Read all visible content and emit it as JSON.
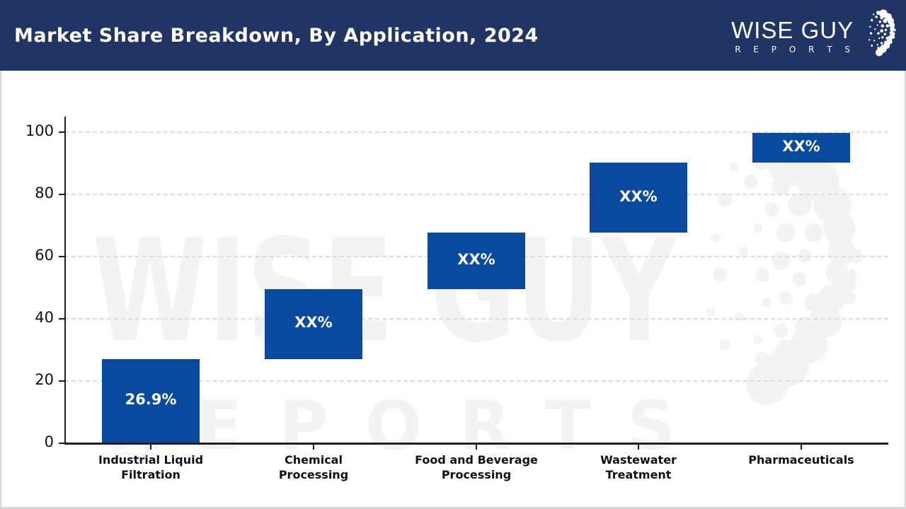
{
  "header": {
    "title": "Market Share Breakdown, By Application, 2024",
    "logo_line1": "WISE GUY",
    "logo_line2": "R E P O R T S"
  },
  "watermark": {
    "line1": "WISE GUY",
    "line2": "REPORTS"
  },
  "chart_data": {
    "type": "bar",
    "subtype": "waterfall",
    "title": "Market Share Breakdown, By Application, 2024",
    "categories": [
      "Industrial Liquid Filtration",
      "Chemical Processing",
      "Food and Beverage Processing",
      "Wastewater Treatment",
      "Pharmaceuticals"
    ],
    "category_lines": [
      [
        "Industrial Liquid",
        "Filtration"
      ],
      [
        "Chemical",
        "Processing"
      ],
      [
        "Food and Beverage",
        "Processing"
      ],
      [
        "Wastewater",
        "Treatment"
      ],
      [
        "Pharmaceuticals"
      ]
    ],
    "segments": [
      {
        "category": "Industrial Liquid Filtration",
        "start": 0,
        "end": 26.9,
        "label": "26.9%"
      },
      {
        "category": "Chemical Processing",
        "start": 26.9,
        "end": 49.4,
        "label": "XX%"
      },
      {
        "category": "Food and Beverage Processing",
        "start": 49.4,
        "end": 67.4,
        "label": "XX%"
      },
      {
        "category": "Wastewater Treatment",
        "start": 67.4,
        "end": 89.9,
        "label": "XX%"
      },
      {
        "category": "Pharmaceuticals",
        "start": 89.9,
        "end": 99.6,
        "label": "XX%"
      }
    ],
    "yticks": [
      0,
      20,
      40,
      60,
      80,
      100
    ],
    "ylim": [
      0,
      105
    ],
    "xlabel": "",
    "ylabel": "",
    "grid": "dashed-horizontal",
    "legend": "none",
    "colors": {
      "bar": "#0a4a9e",
      "bar_label": "#ffffff",
      "axis": "#1f1f1f",
      "grid": "#dcdcdc",
      "tick_label": "#111111"
    }
  },
  "theme": {
    "header_bg": "#203564",
    "header_text": "#ffffff",
    "page_bg": "#ffffff",
    "border": "#d6d6d6",
    "watermark": "#f3f3f3"
  }
}
